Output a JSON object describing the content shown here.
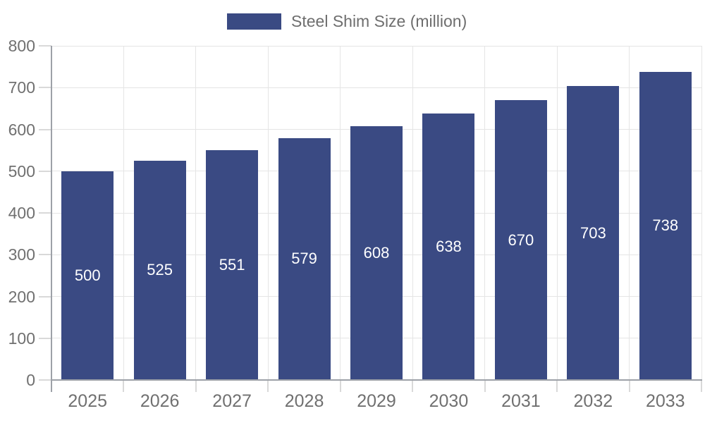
{
  "chart_data": {
    "type": "bar",
    "title": "",
    "categories": [
      "2025",
      "2026",
      "2027",
      "2028",
      "2029",
      "2030",
      "2031",
      "2032",
      "2033"
    ],
    "series": [
      {
        "name": "Steel Shim Size (million)",
        "values": [
          500,
          525,
          551,
          579,
          608,
          638,
          670,
          703,
          738
        ]
      }
    ],
    "xlabel": "",
    "ylabel": "",
    "ylim": [
      0,
      800
    ],
    "ytick_step": 100,
    "yticks": [
      0,
      100,
      200,
      300,
      400,
      500,
      600,
      700,
      800
    ],
    "grid": true,
    "legend_position": "top-center",
    "value_labels_position": "inside-center",
    "colors": {
      "bar": "#3A4A83",
      "value_label": "#FFFFFF",
      "axis_text": "#707070",
      "legend_text": "#6E6E6E",
      "grid_line": "#E5E5E5",
      "axis_line": "#9DA1A8",
      "tick_mark": "#D9D9D9",
      "background": "#FFFFFF"
    }
  }
}
